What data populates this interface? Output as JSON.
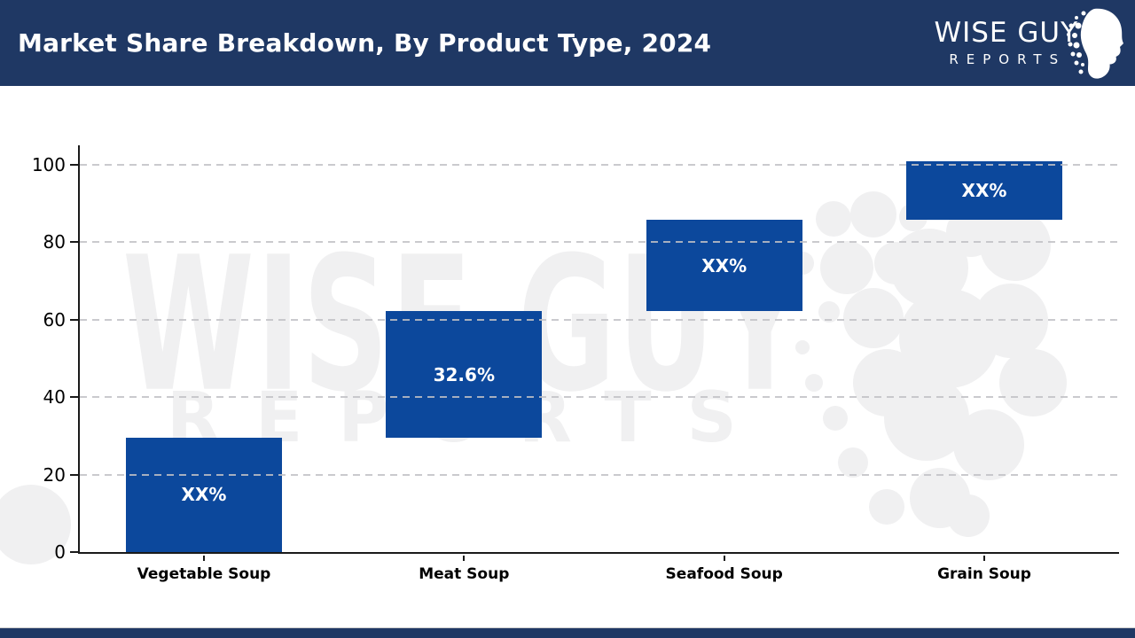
{
  "header": {
    "title": "Market Share Breakdown, By Product Type, 2024",
    "bg_color": "#1f3864",
    "logo": {
      "wordmark": "WISE GUY",
      "subtitle": "REPORTS",
      "head_icon": "dotted-head-profile-icon"
    }
  },
  "watermark": {
    "wordmark": "WISE GUY",
    "subtitle": "REPORTS",
    "color": "#f0f0f1"
  },
  "chart_data": {
    "type": "bar",
    "subtype": "floating-waterfall",
    "title": "Market Share Breakdown, By Product Type, 2024",
    "categories": [
      "Vegetable Soup",
      "Meat Soup",
      "Seafood Soup",
      "Grain Soup"
    ],
    "segments": [
      {
        "category": "Vegetable Soup",
        "start": 0,
        "end": 29.5,
        "value": 29.5,
        "value_label": "XX%"
      },
      {
        "category": "Meat Soup",
        "start": 29.5,
        "end": 62.1,
        "value": 32.6,
        "value_label": "32.6%"
      },
      {
        "category": "Seafood Soup",
        "start": 62.1,
        "end": 85.7,
        "value": 23.6,
        "value_label": "XX%"
      },
      {
        "category": "Grain Soup",
        "start": 85.7,
        "end": 100.7,
        "value": 15.0,
        "value_label": "XX%"
      }
    ],
    "xlabel": "",
    "ylabel": "",
    "ylim": [
      0,
      105.4
    ],
    "yticks": [
      0,
      20,
      40,
      60,
      80,
      100
    ],
    "grid": "horizontal-dashed-over-bars",
    "legend": "none",
    "bar_color": "#0c489c",
    "bar_label_color": "#ffffff",
    "axis_color": "#1a1a1a"
  }
}
